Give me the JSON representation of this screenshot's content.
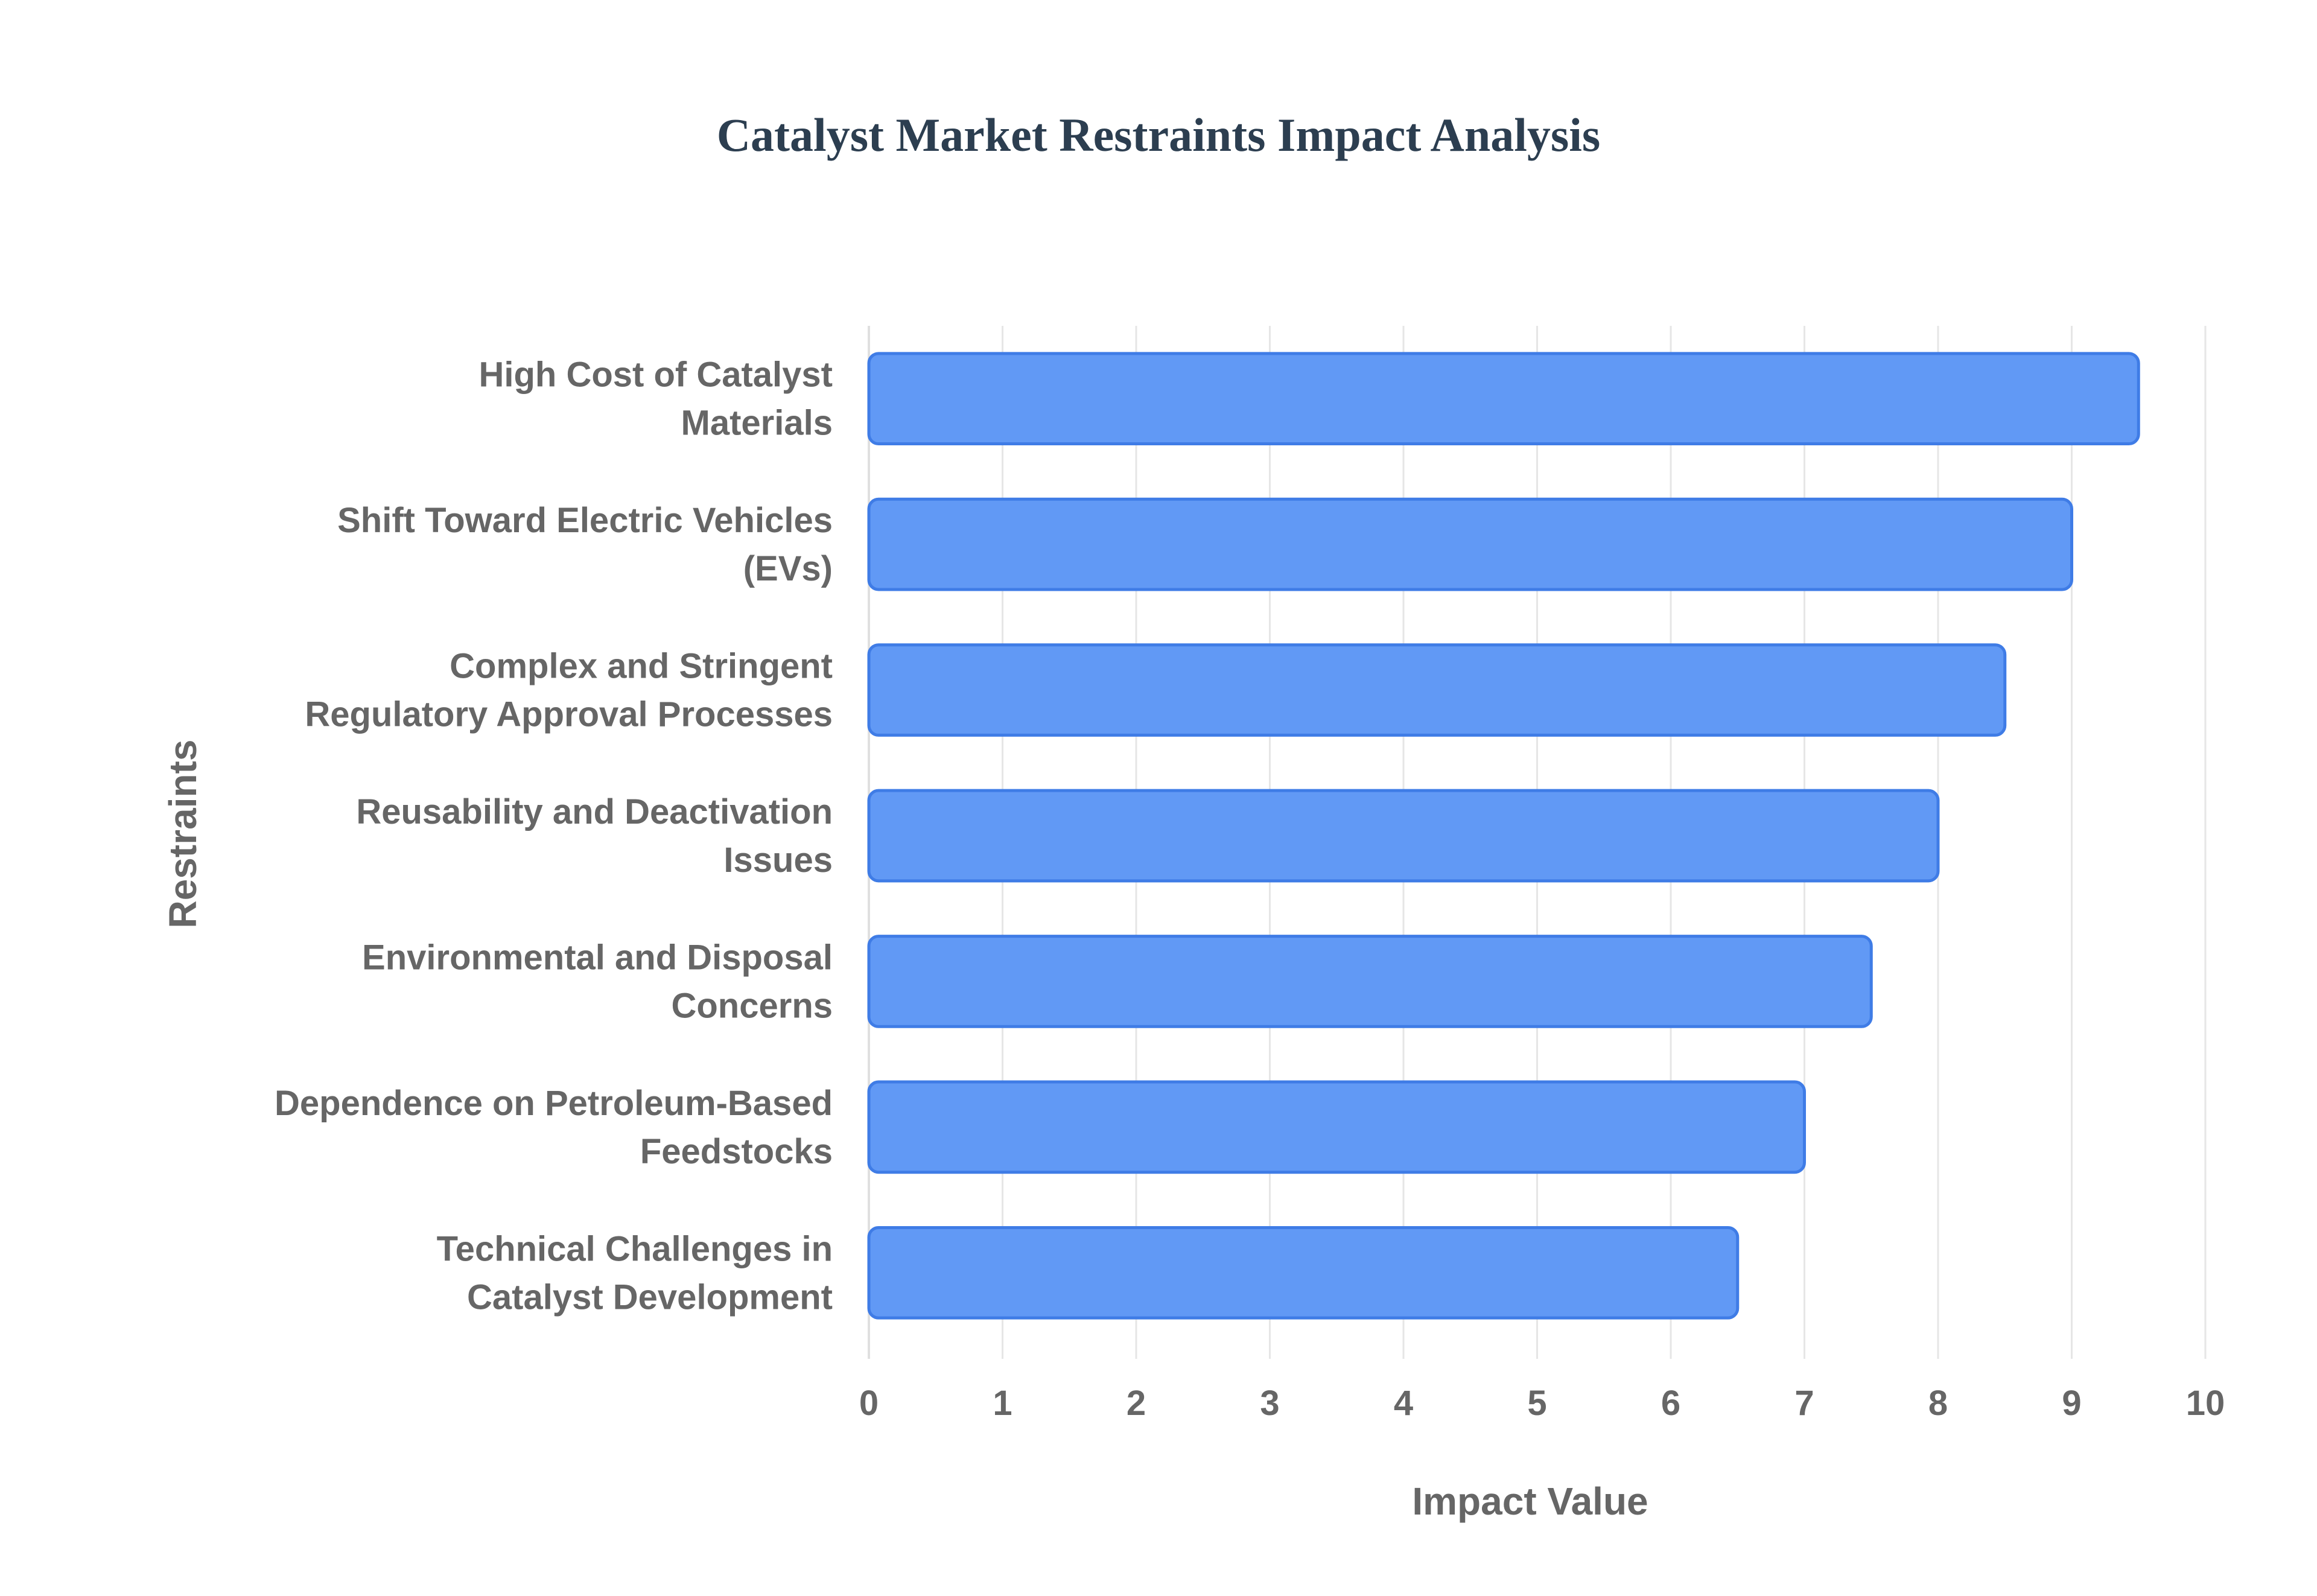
{
  "chart_data": {
    "type": "bar",
    "orientation": "horizontal",
    "title": "Catalyst Market Restraints Impact Analysis",
    "xlabel": "Impact Value",
    "ylabel": "Restraints",
    "xlim": [
      0,
      10
    ],
    "x_ticks": [
      "0",
      "1",
      "2",
      "3",
      "4",
      "5",
      "6",
      "7",
      "8",
      "9",
      "10"
    ],
    "grid": true,
    "legend": "none",
    "categories": [
      [
        "High Cost of Catalyst",
        "Materials"
      ],
      [
        "Shift Toward Electric Vehicles",
        "(EVs)"
      ],
      [
        "Complex and Stringent",
        "Regulatory Approval Processes"
      ],
      [
        "Reusability and Deactivation",
        "Issues"
      ],
      [
        "Environmental and Disposal",
        "Concerns"
      ],
      [
        "Dependence on Petroleum-Based",
        "Feedstocks"
      ],
      [
        "Technical Challenges in",
        "Catalyst Development"
      ]
    ],
    "values": [
      9.5,
      9,
      8.5,
      8,
      7.5,
      7,
      6.5
    ],
    "colors": {
      "bar_fill": "#6199f5",
      "bar_border": "#3f7ce6",
      "title": "#2c3e50",
      "text": "#666666",
      "grid": "#e6e6e6"
    }
  }
}
